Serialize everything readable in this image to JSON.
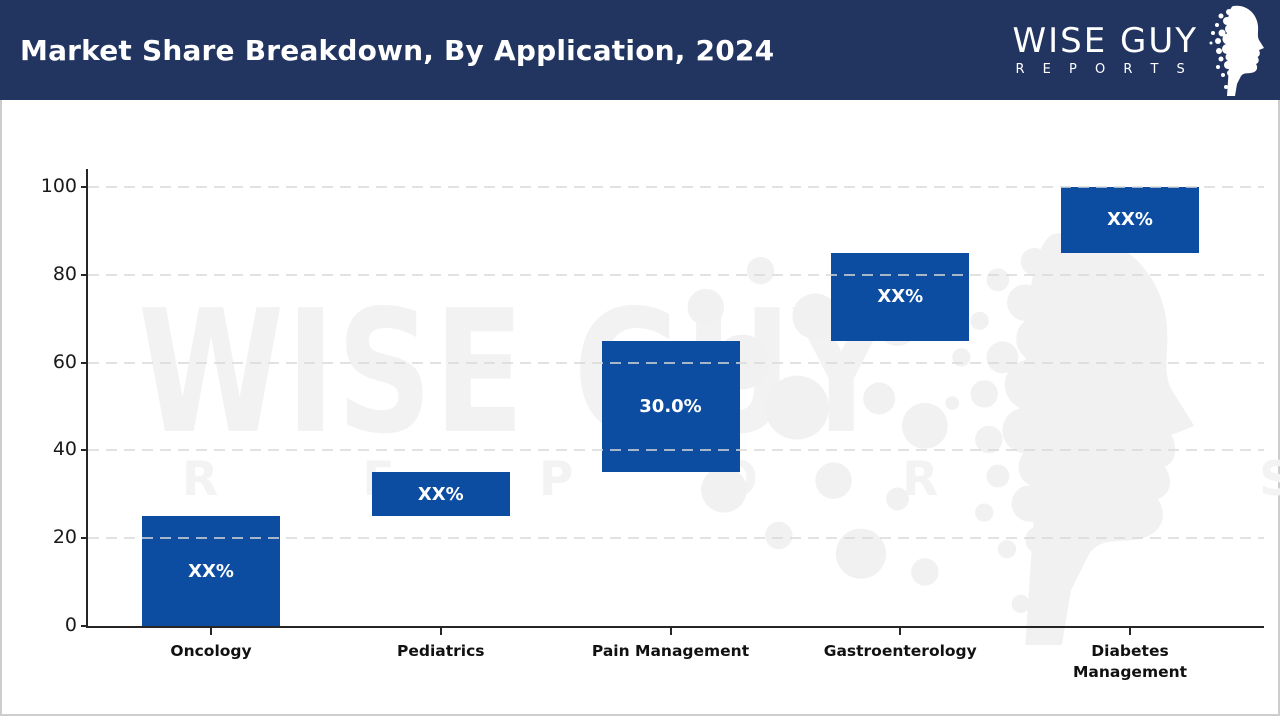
{
  "header": {
    "title": "Market Share Breakdown, By Application, 2024",
    "bg_color": "#223560",
    "logo": {
      "line1": "WISE GUY",
      "line2": "R E P O R T S"
    }
  },
  "watermark": {
    "line1": "WISE GUY",
    "line2": "R E P O R T S"
  },
  "chart_data": {
    "type": "bar",
    "subtype": "floating-waterfall",
    "title": "Market Share Breakdown, By Application, 2024",
    "categories": [
      "Oncology",
      "Pediatrics",
      "Pain Management",
      "Gastroenterology",
      "Diabetes\nManagement"
    ],
    "bars": [
      {
        "category": "Oncology",
        "start": 0,
        "end": 25,
        "label": "XX%"
      },
      {
        "category": "Pediatrics",
        "start": 25,
        "end": 35,
        "label": "XX%"
      },
      {
        "category": "Pain Management",
        "start": 35,
        "end": 65,
        "label": "30.0%"
      },
      {
        "category": "Gastroenterology",
        "start": 65,
        "end": 85,
        "label": "XX%"
      },
      {
        "category": "Diabetes\nManagement",
        "start": 85,
        "end": 100,
        "label": "XX%"
      }
    ],
    "yticks": [
      0,
      20,
      40,
      60,
      80,
      100
    ],
    "ylim": [
      0,
      104
    ],
    "xlabel": "",
    "ylabel": "",
    "grid": "horizontal-dashed",
    "legend": "none",
    "bar_color": "#0c4da2",
    "bar_label_color": "#ffffff"
  }
}
